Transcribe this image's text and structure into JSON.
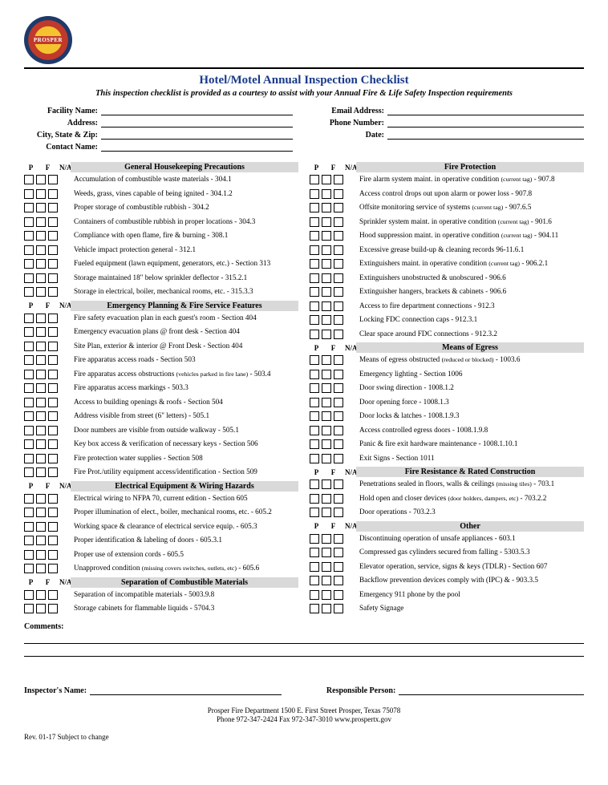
{
  "title": "Hotel/Motel Annual Inspection Checklist",
  "subtitle": "This inspection checklist is provided as a courtesy to assist with your Annual Fire & Life Safety Inspection requirements",
  "logo_text": "PROSPER",
  "form_left": [
    {
      "label": "Facility Name:"
    },
    {
      "label": "Address:"
    },
    {
      "label": "City, State & Zip:"
    },
    {
      "label": "Contact Name:"
    }
  ],
  "form_right": [
    {
      "label": "Email Address:"
    },
    {
      "label": "Phone Number:"
    },
    {
      "label": "Date:"
    }
  ],
  "pfna": [
    "P",
    "F",
    "N/A"
  ],
  "left_sections": [
    {
      "title": "General Housekeeping Precautions",
      "items": [
        "Accumulation of combustible waste materials - 304.1",
        "Weeds, grass, vines capable of being ignited - 304.1.2",
        "Proper storage of combustible rubbish  - 304.2",
        "Containers of combustible rubbish in proper locations - 304.3",
        "Compliance with open flame, fire & burning - 308.1",
        "Vehicle impact protection general - 312.1",
        "Fueled equipment (lawn equipment, generators, etc.) - Section 313",
        "Storage maintained 18\" below sprinkler deflector - 315.2.1",
        "Storage in electrical, boiler, mechanical rooms, etc. - 315.3.3"
      ]
    },
    {
      "title": "Emergency Planning & Fire Service Features",
      "items": [
        "Fire safety evacuation plan in each guest's room - Section 404",
        "Emergency evacuation plans @ front desk - Section 404",
        "Site Plan, exterior & interior @ Front Desk - Section 404",
        "Fire apparatus access roads - Section 503",
        "Fire apparatus access obstructions (vehicles parked in fire lane) - 503.4",
        "Fire apparatus access markings - 503.3",
        "Access to building openings & roofs - Section 504",
        "Address visible from street (6\" letters) - 505.1",
        "Door numbers are visible from outside walkway - 505.1",
        "Key box access & verification of necessary keys - Section 506",
        "Fire protection water supplies - Section 508",
        "Fire Prot./utility equipment access/identification - Section 509"
      ]
    },
    {
      "title": "Electrical Equipment & Wiring Hazards",
      "items": [
        "Electrical wiring to NFPA 70, current edition - Section 605",
        "Proper illumination of elect., boiler, mechanical rooms, etc. - 605.2",
        "Working space & clearance of electrical service equip. - 605.3",
        "Proper identification & labeling of doors - 605.3.1",
        "Proper use of extension cords - 605.5",
        "Unapproved condition (missing covers switches, outlets, etc) - 605.6"
      ]
    },
    {
      "title": "Separation of Combustible Materials",
      "items": [
        "Separation of incompatible materials - 5003.9.8",
        "Storage cabinets for flammable liquids - 5704.3"
      ]
    }
  ],
  "right_sections": [
    {
      "title": "Fire Protection",
      "items": [
        "Fire alarm system maint. in operative condition (current tag) - 907.8",
        "Access control drops out upon alarm or power loss - 907.8",
        "Offsite monitoring service of systems (current tag) - 907.6.5",
        "Sprinkler system maint. in operative condition (current tag) - 901.6",
        "Hood suppression maint. in operative condition (current tag) - 904.11",
        "Excessive grease build-up & cleaning records 96-11.6.1",
        "Extinguishers maint. in operative condition (current tag) - 906.2.1",
        "Extinguishers unobstructed & unobscured - 906.6",
        "Extinguisher hangers, brackets & cabinets - 906.6",
        "Access to fire department connections - 912.3",
        "Locking FDC connection caps - 912.3.1",
        "Clear space around FDC connections - 912.3.2"
      ]
    },
    {
      "title": "Means of Egress",
      "items": [
        "Means of egress obstructed (reduced or blocked) - 1003.6",
        "Emergency lighting - Section 1006",
        "Door swing direction - 1008.1.2",
        "Door opening force - 1008.1.3",
        "Door locks & latches - 1008.1.9.3",
        "Access controlled egress doors - 1008.1.9.8",
        "Panic & fire exit hardware maintenance - 1008.1.10.1",
        "Exit Signs - Section 1011"
      ]
    },
    {
      "title": "Fire Resistance & Rated Construction",
      "items": [
        "Penetrations sealed in floors, walls & ceilings (missing tiles) - 703.1",
        "Hold open and closer devices (door holders, dampers, etc) - 703.2.2",
        "Door operations - 703.2.3"
      ]
    },
    {
      "title": "Other",
      "items": [
        "Discontinuing operation of unsafe appliances - 603.1",
        "Compressed gas cylinders secured from falling - 5303.5.3",
        "Elevator operation, service, signs & keys (TDLR) - Section 607",
        "Backflow prevention devices comply with (IPC) & - 903.3.5",
        "Emergency 911 phone by the pool",
        "Safety Signage"
      ]
    }
  ],
  "comments_label": "Comments:",
  "sig_left": "Inspector's Name:",
  "sig_right": "Responsible Person:",
  "footer_line1": "Prosper Fire Department  1500 E. First Street Prosper, Texas 75078",
  "footer_line2": "Phone 972-347-2424  Fax 972-347-3010  www.prospertx.gov",
  "revision": "Rev. 01-17 Subject to change"
}
